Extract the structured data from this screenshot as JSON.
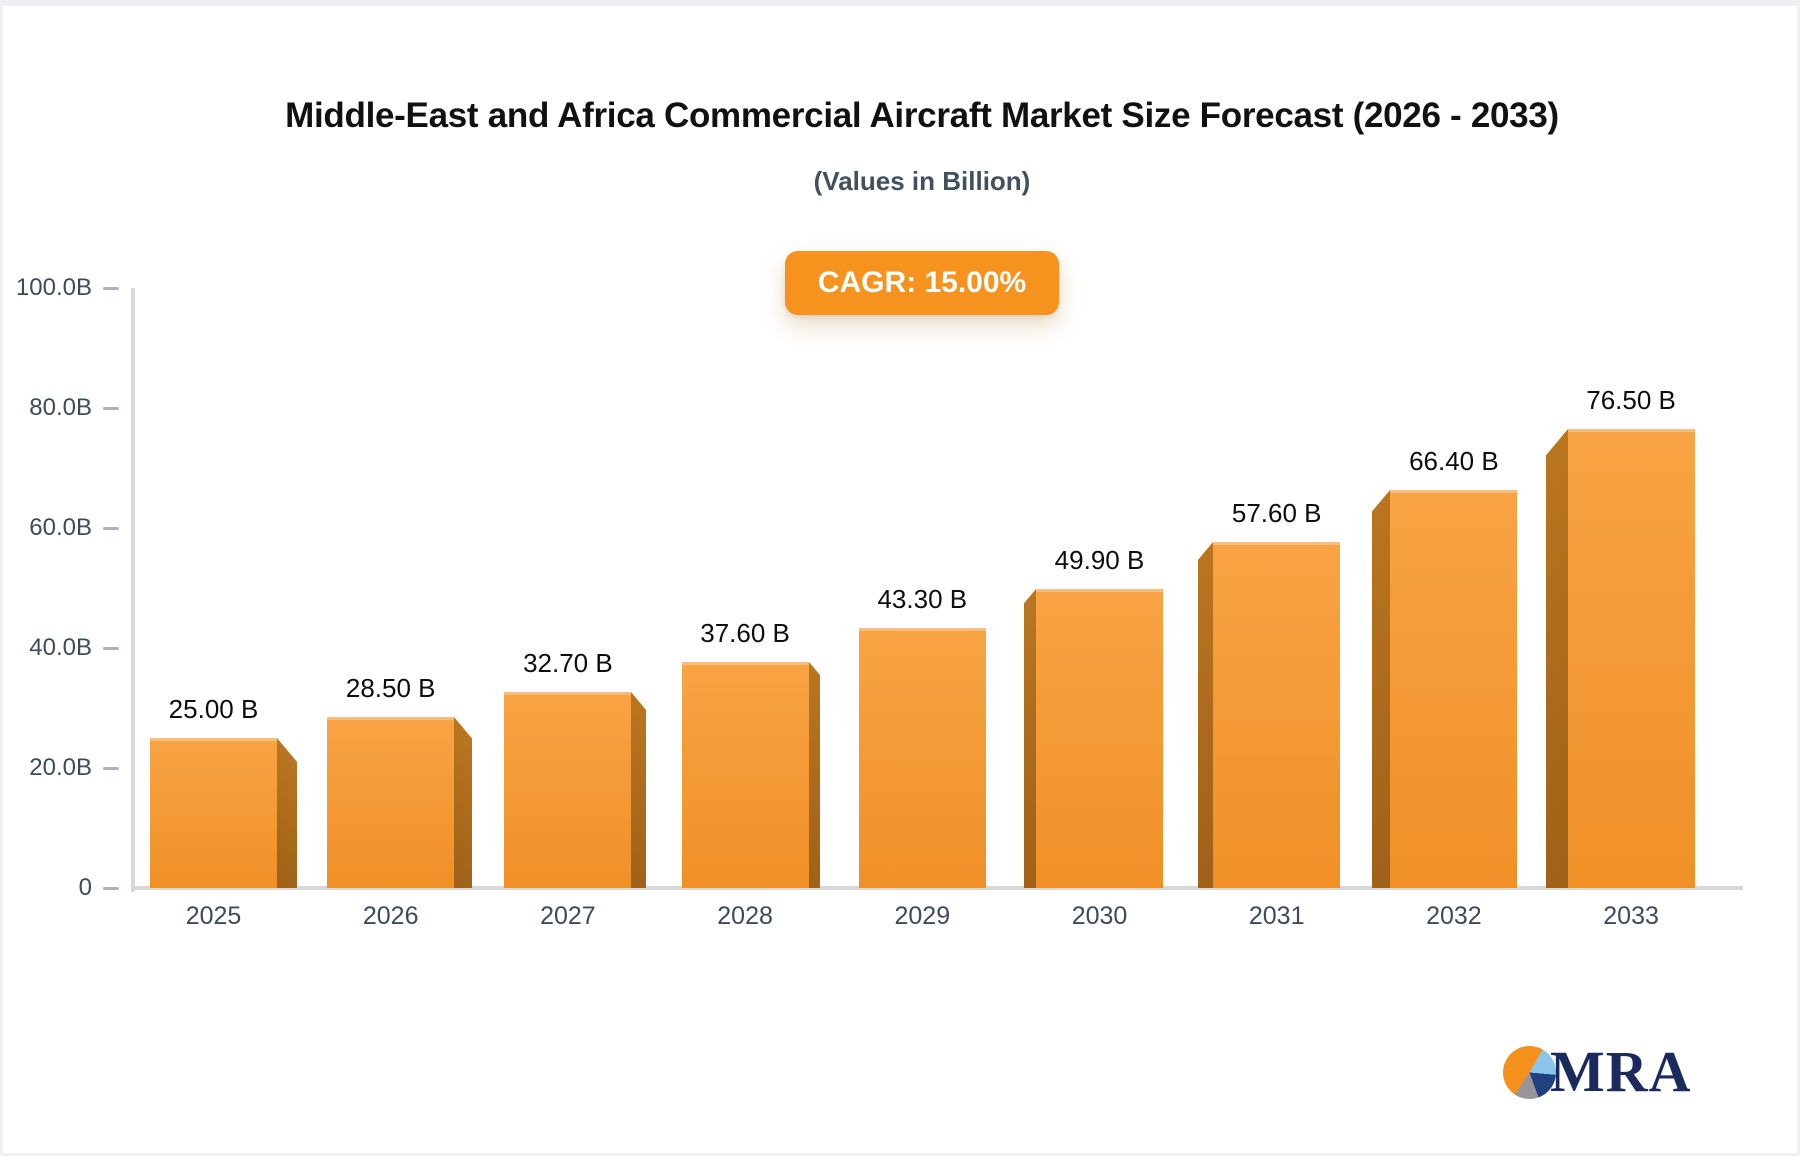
{
  "header": {
    "title": "Middle-East and Africa Commercial Aircraft Market Size Forecast (2026 - 2033)",
    "subtitle": "(Values in Billion)",
    "cagr_label": "CAGR: 15.00%"
  },
  "chart_data": {
    "type": "bar",
    "title": "Middle-East and Africa Commercial Aircraft Market Size Forecast (2026 - 2033)",
    "subtitle": "(Values in Billion)",
    "cagr": "15.00%",
    "unit": "Billion",
    "categories": [
      "2025",
      "2026",
      "2027",
      "2028",
      "2029",
      "2030",
      "2031",
      "2032",
      "2033"
    ],
    "values": [
      25.0,
      28.5,
      32.7,
      37.6,
      43.3,
      49.9,
      57.6,
      66.4,
      76.5
    ],
    "value_labels": [
      "25.00 B",
      "28.50 B",
      "32.70 B",
      "37.60 B",
      "43.30 B",
      "49.90 B",
      "57.60 B",
      "66.40 B",
      "76.50 B"
    ],
    "xlabel": "",
    "ylabel": "",
    "ylim": [
      0,
      100
    ],
    "yticks": [
      {
        "value": 0,
        "label": "0"
      },
      {
        "value": 20,
        "label": "20.0B"
      },
      {
        "value": 40,
        "label": "40.0B"
      },
      {
        "value": 60,
        "label": "60.0B"
      },
      {
        "value": 80,
        "label": "80.0B"
      },
      {
        "value": 100,
        "label": "100.0B"
      }
    ],
    "grid": false,
    "legend": false,
    "bar_style": "3d-perspective",
    "colors": {
      "bar_top": "#f8a344",
      "bar_bottom": "#f09027",
      "bar_top_edge": "#fbbd7c",
      "bar_side_top": "#ba751f",
      "bar_side_bottom": "#9e6118",
      "axis_line": "#d8d8db",
      "tick": "#abb3bd",
      "axis_text": "#3c4a5c",
      "value_text": "#0d0d0d",
      "badge_bg": "#f6921e",
      "badge_text": "#ffffff"
    }
  },
  "logo": {
    "text": "MRA",
    "text_color": "#1b2a5c",
    "pie_icon_colors": {
      "orange": "#f5921e",
      "light_blue": "#8ac6ea",
      "navy": "#20407f",
      "gray": "#96969a"
    }
  }
}
